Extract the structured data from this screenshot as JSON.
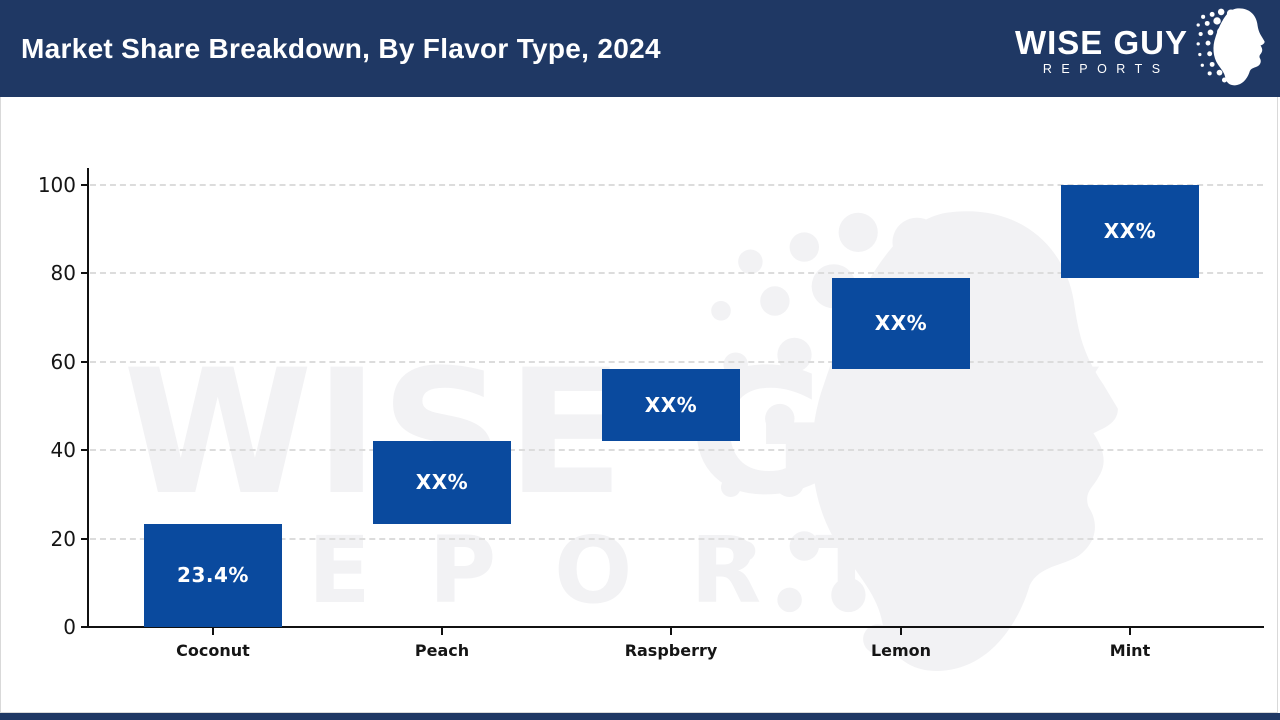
{
  "header": {
    "title": "Market Share Breakdown, By Flavor Type, 2024",
    "logo": {
      "line1": "WISE GUY",
      "line2": "REPORTS"
    }
  },
  "watermark": {
    "line1": "WISE GUY",
    "line2": "REPORTS"
  },
  "theme": {
    "header_bg": "#1f3864",
    "footer_bg": "#1f3864",
    "bar_color": "#0a4a9e",
    "grid_color": "#dcdcdc",
    "axis_color": "#111111",
    "watermark_color": "#f2f2f4"
  },
  "chart_data": {
    "type": "bar",
    "subtype": "floating-waterfall",
    "title": "Market Share Breakdown, By Flavor Type, 2024",
    "categories": [
      "Coconut",
      "Peach",
      "Raspberry",
      "Lemon",
      "Mint"
    ],
    "segments": [
      {
        "label": "23.4%",
        "start": 0,
        "end": 23.4
      },
      {
        "label": "XX%",
        "start": 23.4,
        "end": 42
      },
      {
        "label": "XX%",
        "start": 42,
        "end": 58.4
      },
      {
        "label": "XX%",
        "start": 58.4,
        "end": 79
      },
      {
        "label": "XX%",
        "start": 79,
        "end": 100
      }
    ],
    "values": [
      23.4,
      18.6,
      16.4,
      20.6,
      21
    ],
    "yticks": [
      0,
      20,
      40,
      60,
      80,
      100
    ],
    "ylim": [
      0,
      104
    ],
    "xlabel": "",
    "ylabel": "",
    "grid": "horizontal-dashed",
    "legend": "none"
  }
}
